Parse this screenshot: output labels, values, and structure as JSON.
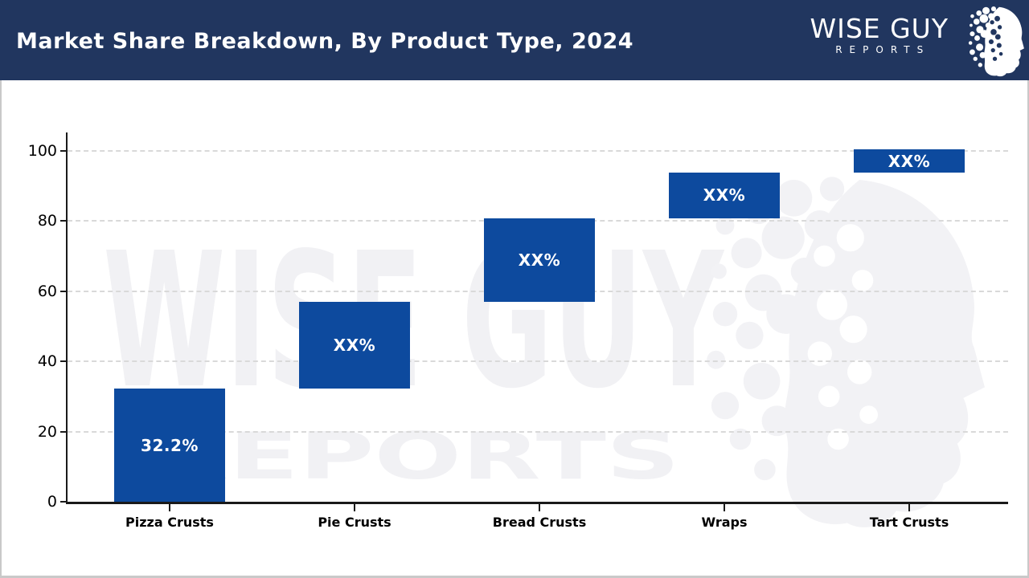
{
  "header": {
    "title": "Market Share Breakdown, By Product Type, 2024",
    "logo": {
      "line1": "WISE GUY",
      "line2": "REPORTS"
    }
  },
  "watermark": {
    "line1": "WISE GUY",
    "line2": "REPORTS"
  },
  "chart_data": {
    "type": "bar",
    "subtype": "waterfall",
    "title": "Market Share Breakdown, By Product Type, 2024",
    "categories": [
      "Pizza Crusts",
      "Pie Crusts",
      "Bread Crusts",
      "Wraps",
      "Tart Crusts"
    ],
    "segments": [
      {
        "category": "Pizza Crusts",
        "start": 0,
        "end": 32.2,
        "label": "32.2%"
      },
      {
        "category": "Pie Crusts",
        "start": 32.2,
        "end": 56.9,
        "label": "XX%"
      },
      {
        "category": "Bread Crusts",
        "start": 56.9,
        "end": 80.8,
        "label": "XX%"
      },
      {
        "category": "Wraps",
        "start": 80.8,
        "end": 93.7,
        "label": "XX%"
      },
      {
        "category": "Tart Crusts",
        "start": 93.7,
        "end": 100.3,
        "label": "XX%"
      }
    ],
    "y_ticks": [
      0,
      20,
      40,
      60,
      80,
      100
    ],
    "ylim": [
      0,
      105
    ],
    "xlabel": "",
    "ylabel": "",
    "grid": "horizontal-dashed",
    "legend": "none",
    "bar_color": "#0D4A9E",
    "bar_label_color": "#FFFFFF"
  },
  "colors": {
    "header_bg": "#21365F",
    "bar": "#0D4A9E",
    "grid": "#D9D9D9",
    "axis": "#1A1A1A",
    "watermark": "#F1F1F4",
    "border": "#C9C9C9"
  }
}
